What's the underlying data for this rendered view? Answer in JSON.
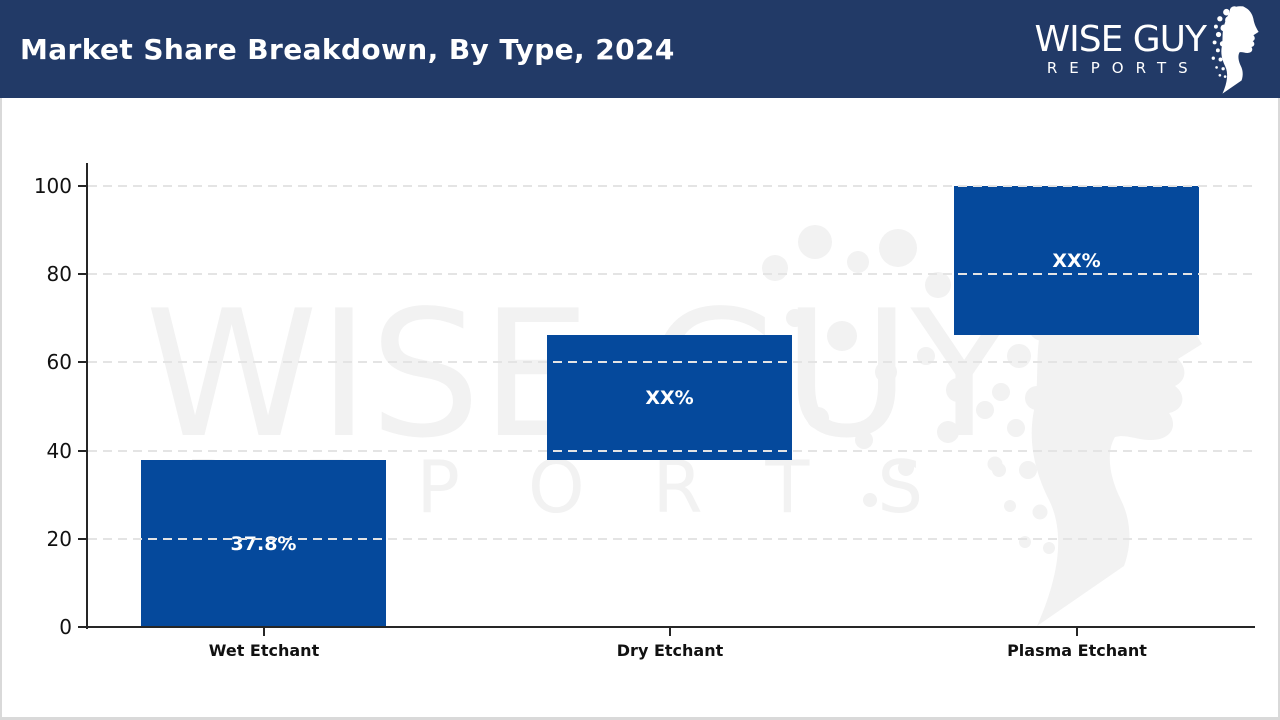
{
  "header": {
    "title": "Market Share Breakdown, By Type, 2024",
    "logo": {
      "brand_line1": "WISE GUY",
      "brand_line2": "REPORTS"
    }
  },
  "watermark": {
    "line1": "WISE GUY",
    "line2": "REPORTS"
  },
  "chart_data": {
    "type": "bar",
    "variant": "waterfall",
    "title": "Market Share Breakdown, By Type, 2024",
    "categories": [
      "Wet Etchant",
      "Dry Etchant",
      "Plasma Etchant"
    ],
    "segments": [
      {
        "category": "Wet Etchant",
        "start": 0,
        "end": 37.8,
        "label": "37.8%"
      },
      {
        "category": "Dry Etchant",
        "start": 37.8,
        "end": 66.2,
        "label": "XX%"
      },
      {
        "category": "Plasma Etchant",
        "start": 66.2,
        "end": 100,
        "label": "XX%"
      }
    ],
    "yticks": [
      0,
      20,
      40,
      60,
      80,
      100
    ],
    "ylim": [
      0,
      105
    ],
    "xlabel": "",
    "ylabel": "",
    "grid": "horizontal-dashed",
    "legend": false,
    "bar_color": "#05499c",
    "bar_label_color": "#ffffff"
  },
  "colors": {
    "header_bg": "#223a67",
    "bar": "#05499c",
    "axis": "#262626",
    "grid": "#e4e4e4",
    "watermark": "#f2f2f2",
    "page_border": "#d9d9d9"
  }
}
